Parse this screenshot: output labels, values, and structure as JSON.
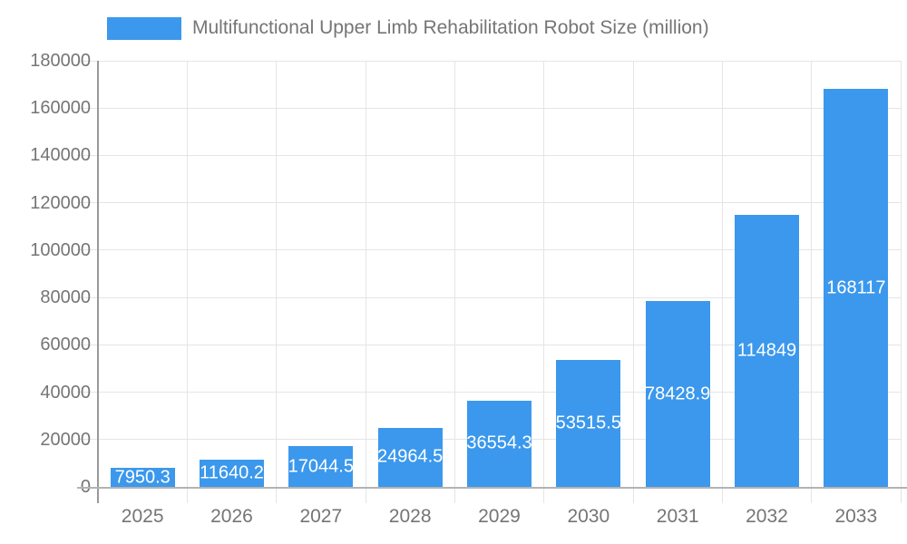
{
  "colors": {
    "bar": "#3B98EC",
    "grid": "#E5E5E5",
    "y_axis_line": "#999999",
    "baseline": "#B3B3B3",
    "tick_text": "#757575",
    "title_text": "#757575",
    "value_label": "#FFFFFF",
    "background": "#FFFFFF"
  },
  "chart_data": {
    "type": "bar",
    "title": "Multifunctional Upper Limb Rehabilitation Robot Size (million)",
    "xlabel": "",
    "ylabel": "",
    "categories": [
      "2025",
      "2026",
      "2027",
      "2028",
      "2029",
      "2030",
      "2031",
      "2032",
      "2033"
    ],
    "values": [
      7950.3,
      11640.2,
      17044.5,
      24964.5,
      36554.3,
      53515.5,
      78428.9,
      114849,
      168117
    ],
    "value_labels": [
      "7950.3",
      "11640.2",
      "17044.5",
      "24964.5",
      "36554.3",
      "53515.5",
      "78428.9",
      "114849",
      "168117"
    ],
    "ylim": [
      0,
      180000
    ],
    "yticks": [
      0,
      20000,
      40000,
      60000,
      80000,
      100000,
      120000,
      140000,
      160000,
      180000
    ],
    "ytick_labels": [
      "0",
      "20000",
      "40000",
      "60000",
      "80000",
      "100000",
      "120000",
      "140000",
      "160000",
      "180000"
    ],
    "grid": true,
    "legend_position": "top",
    "label_position": "inside-center"
  }
}
